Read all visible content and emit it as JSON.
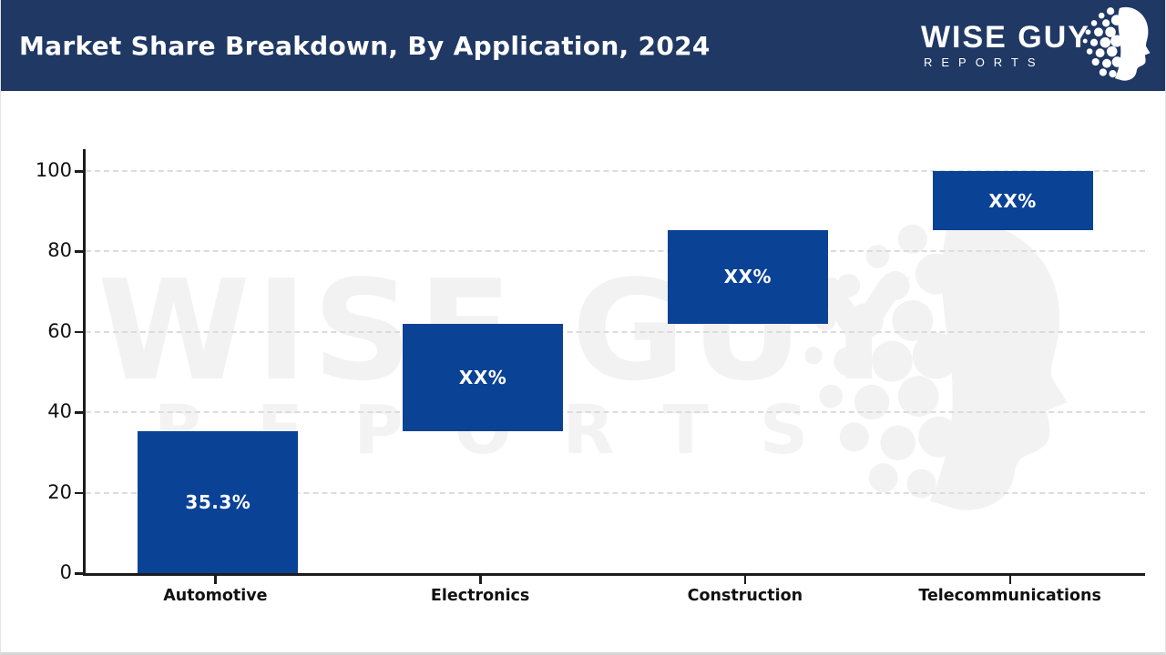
{
  "header": {
    "title": "Market Share Breakdown, By Application, 2024",
    "logo": {
      "wordmark": "WISE GUY",
      "subtitle": "REPORTS"
    }
  },
  "watermark": {
    "line1": "WISE GUY",
    "line2": "REPORTS"
  },
  "chart_data": {
    "type": "bar",
    "subtype": "waterfall",
    "title": "Market Share Breakdown, By Application, 2024",
    "xlabel": "",
    "ylabel": "",
    "categories": [
      "Automotive",
      "Electronics",
      "Construction",
      "Telecommunications"
    ],
    "segments": [
      {
        "category": "Automotive",
        "start": 0,
        "end": 35.3,
        "label": "35.3%"
      },
      {
        "category": "Electronics",
        "start": 35.3,
        "end": 62.0,
        "label": "XX%"
      },
      {
        "category": "Construction",
        "start": 62.0,
        "end": 85.3,
        "label": "XX%"
      },
      {
        "category": "Telecommunications",
        "start": 85.3,
        "end": 100,
        "label": "XX%"
      }
    ],
    "yticks": [
      0,
      20,
      40,
      60,
      80,
      100
    ],
    "ylim": [
      0,
      105
    ],
    "grid": "horizontal-dashed",
    "legend": "none",
    "bar_color": "#0a4296",
    "bar_label_color": "#ffffff"
  },
  "colors": {
    "header_bg": "#1f3864",
    "bar": "#0a4296",
    "axis": "#1c1c1c",
    "gridline": "#dcdcdc",
    "watermark": "#f2f2f2",
    "text": "#111111"
  }
}
